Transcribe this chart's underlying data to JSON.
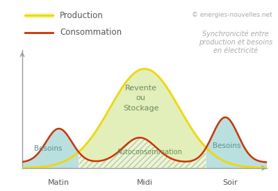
{
  "background_color": "#ffffff",
  "copyright_text": "© energies-nouvelles.net",
  "subtitle_text": "Synchronicité entre\nproduction et besoins\nen électricité",
  "legend_production": "Production",
  "legend_consommation": "Consommation",
  "production_color": "#f0d800",
  "production_fill_color": "#f5f5a0",
  "consommation_color": "#cc3300",
  "besoins_fill_color": "#a8d8d8",
  "autoconso_hatch_color": "#c8d8a0",
  "autoconso_face_color": "#e8f2d8",
  "revente_fill_color": "#e8f2d8",
  "label_color_besoins": "#5a9090",
  "label_color_autoconso": "#6a8a50",
  "label_color_revente": "#6a8a60",
  "axis_color": "#999999",
  "text_color_dark": "#555555",
  "text_color_light": "#aaaaaa",
  "label_besoins_left": "Besoins",
  "label_besoins_right": "Besoins",
  "label_autoconso": "Autoconsommation",
  "label_revente": "Revente\nou\nStockage",
  "xlabel_matin": "Matin",
  "xlabel_midi": "Midi",
  "xlabel_soir": "Soir"
}
